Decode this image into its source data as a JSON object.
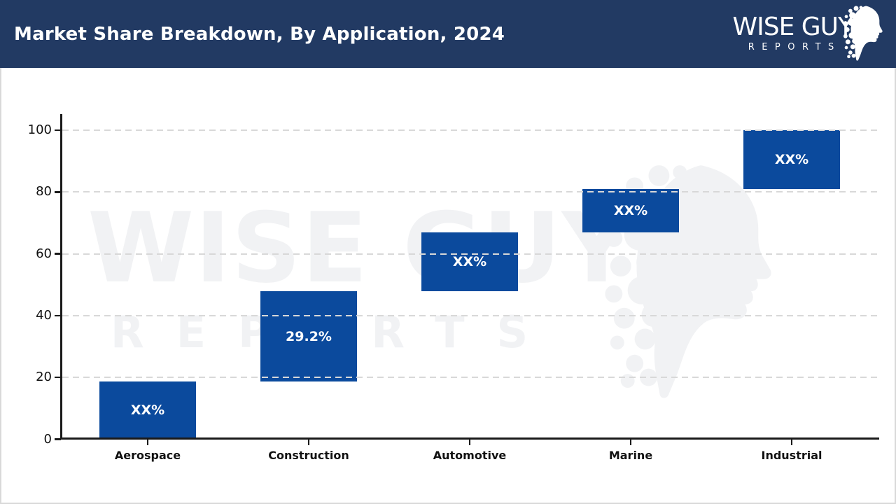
{
  "header": {
    "title": "Market Share Breakdown, By Application, 2024",
    "logo": {
      "line1": "WISE GUY",
      "line2": "REPORTS"
    }
  },
  "watermark": {
    "line1": "WISE GUY",
    "line2": "REPORTS"
  },
  "colors": {
    "header_bg": "#223A63",
    "bar": "#0B4A9D",
    "grid": "#D8D8D8",
    "axis": "#1A1A1A",
    "content_border": "#D9D9D9",
    "watermark": "#F1F2F4",
    "title_text": "#FFFFFF",
    "bar_label_text": "#FFFFFF"
  },
  "chart_data": {
    "type": "bar",
    "subtype": "floating-segment bars (waterfall style, each bar spans from previous cumulative value)",
    "title": "Market Share Breakdown, By Application, 2024",
    "xlabel": "",
    "ylabel": "",
    "categories": [
      "Aerospace",
      "Construction",
      "Automotive",
      "Marine",
      "Industrial"
    ],
    "series": [
      {
        "name": "Market share (%)",
        "segments": [
          {
            "category": "Aerospace",
            "from": 0,
            "to": 18.7,
            "label": "XX%"
          },
          {
            "category": "Construction",
            "from": 18.7,
            "to": 47.9,
            "label": "29.2%"
          },
          {
            "category": "Automotive",
            "from": 47.9,
            "to": 66.9,
            "label": "XX%"
          },
          {
            "category": "Marine",
            "from": 66.9,
            "to": 81.1,
            "label": "XX%"
          },
          {
            "category": "Industrial",
            "from": 81.1,
            "to": 100,
            "label": "XX%"
          }
        ]
      }
    ],
    "yticks": [
      0,
      20,
      40,
      60,
      80,
      100
    ],
    "ylim": [
      0,
      105
    ],
    "grid": "horizontal dashed lines drawn over bars",
    "legend": "none"
  }
}
